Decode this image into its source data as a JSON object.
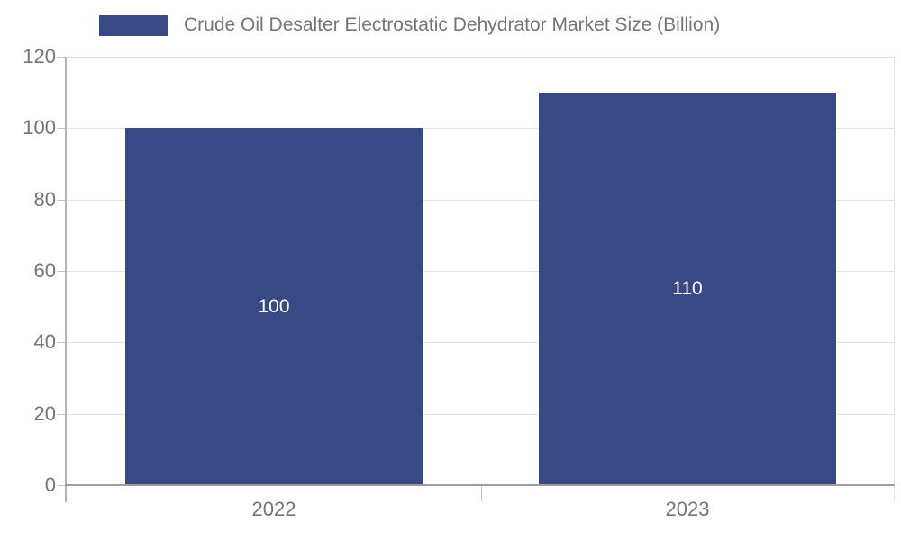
{
  "legend": {
    "label": "Crude Oil Desalter Electrostatic Dehydrator Market Size (Billion)"
  },
  "chart_data": {
    "type": "bar",
    "title": "Crude Oil Desalter Electrostatic Dehydrator Market Size (Billion)",
    "categories": [
      "2022",
      "2023"
    ],
    "series": [
      {
        "name": "Crude Oil Desalter Electrostatic Dehydrator Market Size (Billion)",
        "values": [
          100,
          110
        ]
      }
    ],
    "bar_labels": [
      "100",
      "110"
    ],
    "xlabel": "",
    "ylabel": "",
    "ylim": [
      0,
      120
    ],
    "yticks": [
      0,
      20,
      40,
      60,
      80,
      100,
      120
    ],
    "grid": true,
    "legend_position": "top-left",
    "colors": {
      "bar": "#374a85",
      "bar_value_text": "#ffffff",
      "tick_text": "#757575",
      "legend_text": "#757575",
      "gridline": "#e2e2e2",
      "y_axis_line": "#b3b3b3",
      "x_axis_line": "#9e9e9e",
      "tick_mark": "#c4c4c4"
    }
  }
}
